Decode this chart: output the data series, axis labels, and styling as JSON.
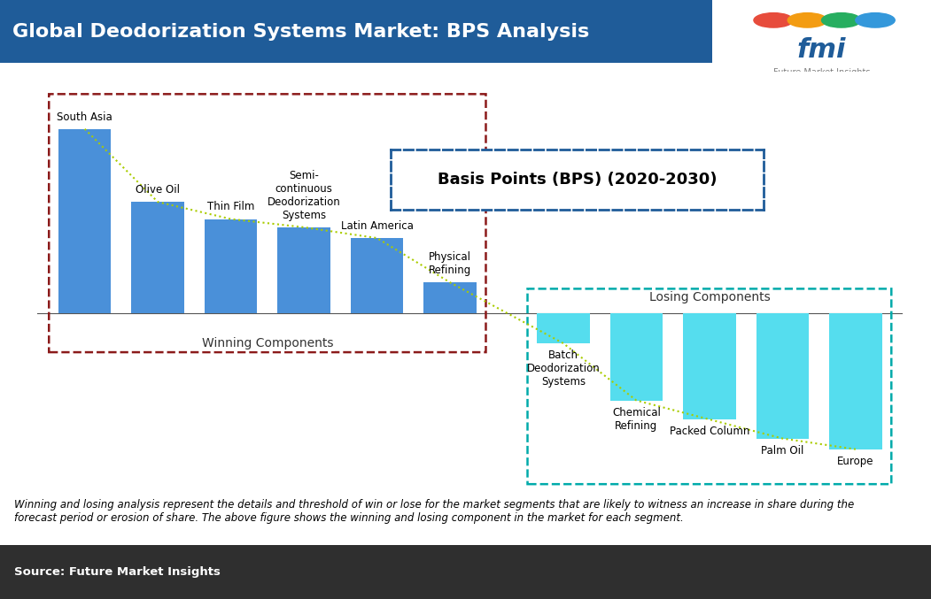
{
  "title": "Global Deodorization Systems Market: BPS Analysis",
  "title_bg_color": "#1F5C99",
  "title_text_color": "white",
  "legend_text": "Basis Points (BPS) (2020-2030)",
  "winning_label": "Winning Components",
  "losing_label": "Losing Components",
  "source_text": "Source: Future Market Insights",
  "footnote": "Winning and losing analysis represent the details and threshold of win or lose for the market segments that are likely to witness an increase in share during the\nforecast period or erosion of share. The above figure shows the winning and losing component in the market for each segment.",
  "winning_bars": {
    "labels": [
      "South Asia",
      "Olive Oil",
      "Thin Film",
      "Semi-\ncontinuous\nDeodorization\nSystems",
      "Latin America",
      "Physical\nRefining"
    ],
    "values": [
      290,
      175,
      148,
      135,
      118,
      48
    ],
    "color": "#4A90D9"
  },
  "losing_bars": {
    "labels": [
      "Batch\nDeodorization\nSystems",
      "Chemical\nRefining",
      "Packed Column",
      "Palm Oil",
      "Europe"
    ],
    "values": [
      48,
      138,
      168,
      198,
      215
    ],
    "color": "#55DDEE"
  },
  "dotted_line_color": "#AACC00",
  "background_color": "white",
  "win_box_color": "#8B1A1A",
  "lose_box_color": "#00AAAA"
}
